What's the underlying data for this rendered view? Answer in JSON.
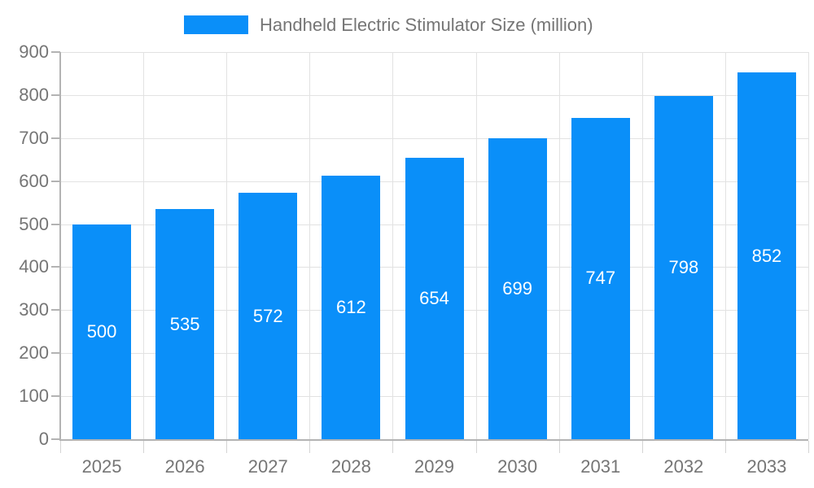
{
  "legend": {
    "label": "Handheld Electric Stimulator Size (million)"
  },
  "chart_data": {
    "type": "bar",
    "title": "Handheld Electric Stimulator Size (million)",
    "categories": [
      "2025",
      "2026",
      "2027",
      "2028",
      "2029",
      "2030",
      "2031",
      "2032",
      "2033"
    ],
    "values": [
      500,
      535,
      572,
      612,
      654,
      699,
      747,
      798,
      852
    ],
    "xlabel": "",
    "ylabel": "",
    "ylim": [
      0,
      900
    ],
    "yticks": [
      0,
      100,
      200,
      300,
      400,
      500,
      600,
      700,
      800,
      900
    ],
    "grid": true,
    "legend_position": "top",
    "value_labels": "inside-center"
  },
  "colors": {
    "bar": "#0a8ff9",
    "value_label": "#ffffff",
    "axis_text": "#757575",
    "legend_text": "#757575",
    "gridline": "#e2e2e2",
    "axis_line": "#b3b3b3",
    "tick_x": "#d4d4d4",
    "background": "#ffffff"
  }
}
